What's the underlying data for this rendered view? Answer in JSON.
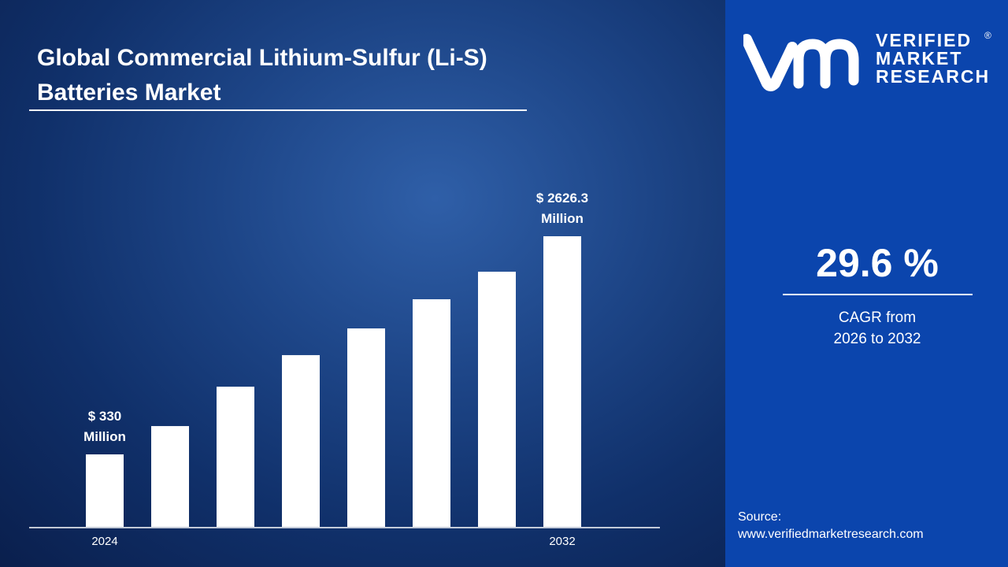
{
  "title": "Global Commercial Lithium-Sulfur (Li-S) Batteries Market",
  "brand": {
    "line1": "VERIFIED",
    "line2": "MARKET",
    "line3": "RESEARCH",
    "registered": "®",
    "logo_mark": "vmr"
  },
  "cagr": {
    "value": "29.6 %",
    "label_line1": "CAGR from",
    "label_line2": "2026 to 2032"
  },
  "source": {
    "label": "Source:",
    "url": "www.verifiedmarketresearch.com"
  },
  "colors": {
    "bar": "#ffffff",
    "panel": "#0b45ad",
    "background": "#1d4587"
  },
  "chart_data": {
    "type": "bar",
    "title": "Global Commercial Lithium-Sulfur (Li-S) Batteries Market",
    "categories": [
      "2024",
      "",
      "",
      "",
      "",
      "",
      "",
      "2032"
    ],
    "values": [
      330,
      628,
      1043,
      1375,
      1656,
      1963,
      2253,
      2626.3
    ],
    "data_labels": [
      {
        "index": 0,
        "line1": "$ 330",
        "line2": "Million"
      },
      {
        "index": 7,
        "line1": "$ 2626.3",
        "line2": "Million"
      }
    ],
    "unit": "USD Million",
    "grid": false,
    "xlabel": "",
    "ylabel": ""
  }
}
